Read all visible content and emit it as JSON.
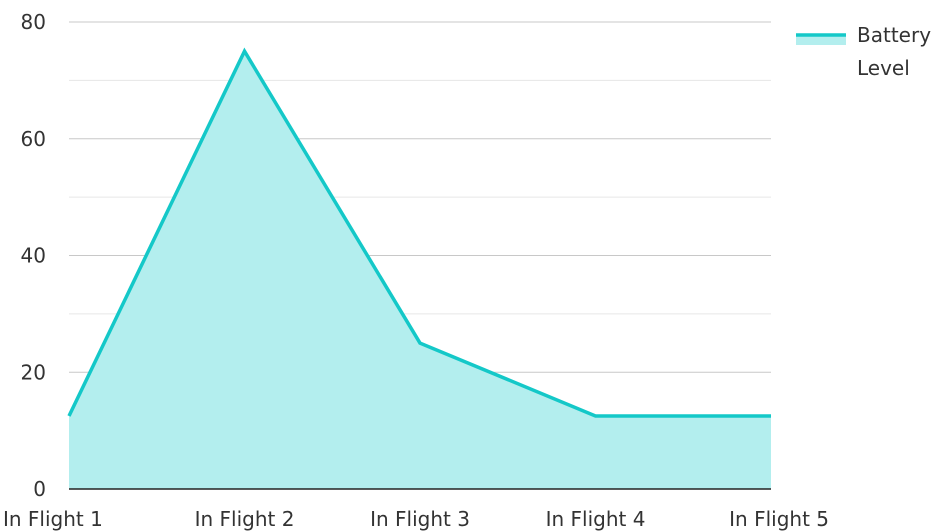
{
  "chart_data": {
    "type": "area",
    "categories": [
      "In Flight 1",
      "In Flight 2",
      "In Flight 3",
      "In Flight 4",
      "In Flight 5"
    ],
    "series": [
      {
        "name": "Battery Level",
        "values": [
          12.5,
          75,
          25,
          12.5,
          12.5
        ]
      }
    ],
    "ylim": [
      0,
      80
    ],
    "yticks": [
      0,
      20,
      40,
      60,
      80
    ],
    "grid": true,
    "legend": "top-right",
    "legend_lines": [
      "Battery",
      "Level"
    ],
    "colors": {
      "line": "#14c8c8",
      "fill": "#b3eeee",
      "grid_major": "#c8c8c8",
      "grid_minor": "#e6e6e6",
      "axis": "#222222"
    }
  }
}
